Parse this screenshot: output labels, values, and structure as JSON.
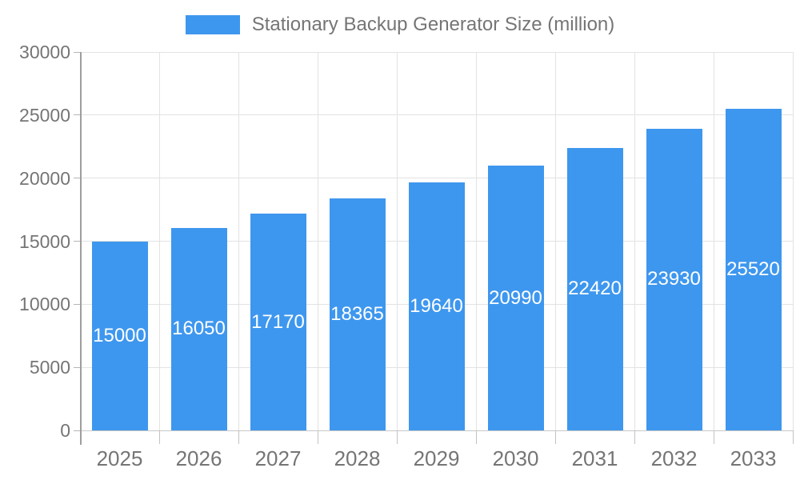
{
  "legend": {
    "label": "Stationary Backup Generator Size (million)"
  },
  "colors": {
    "bar": "#3E97EE",
    "grid": "#e3e3e3",
    "zero_line": "#c9c9c9",
    "axis": "#9e9e9e",
    "tick": "#b5b5b5",
    "label_text": "#757575",
    "value_text": "#ffffff",
    "background": "#ffffff"
  },
  "chart_data": {
    "type": "bar",
    "title": "Stationary Backup Generator Size (million)",
    "categories": [
      "2025",
      "2026",
      "2027",
      "2028",
      "2029",
      "2030",
      "2031",
      "2032",
      "2033"
    ],
    "values": [
      15000,
      16050,
      17170,
      18365,
      19640,
      20990,
      22420,
      23930,
      25520
    ],
    "xlabel": "",
    "ylabel": "",
    "ylim": [
      0,
      30000
    ],
    "yticks": [
      0,
      5000,
      10000,
      15000,
      20000,
      25000,
      30000
    ],
    "grid": true,
    "legend_position": "top",
    "value_label_position": "inside-center"
  }
}
